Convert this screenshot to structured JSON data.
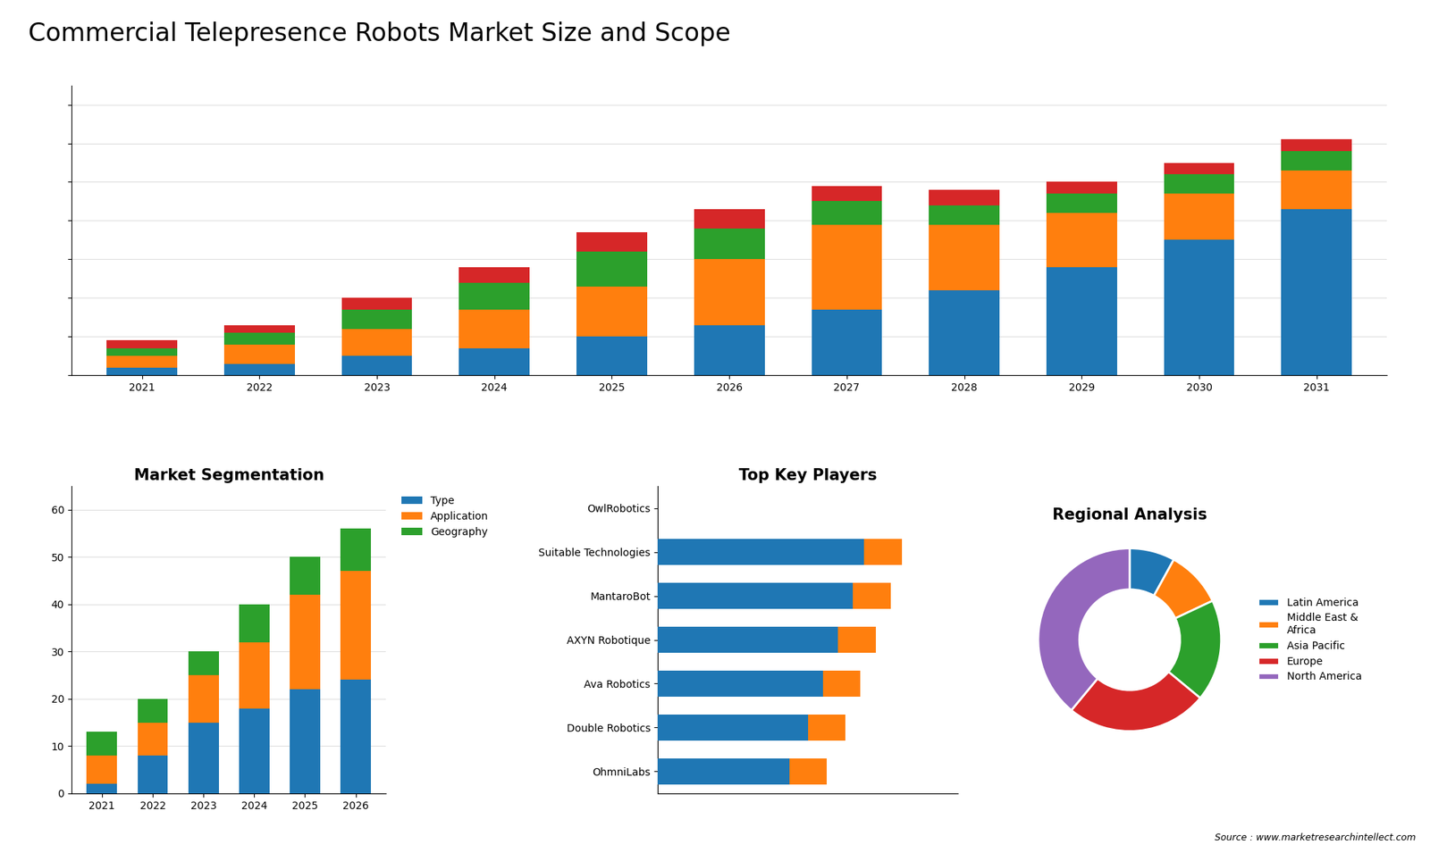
{
  "title": "Commercial Telepresence Robots Market Size and Scope",
  "annotation": "Source : www.marketresearchintellect.com",
  "chart_data": [
    {
      "type": "bar",
      "stacked": true,
      "categories": [
        "2021",
        "2022",
        "2023",
        "2024",
        "2025",
        "2026",
        "2027",
        "2028",
        "2029",
        "2030",
        "2031"
      ],
      "series": [
        {
          "values": [
            2,
            3,
            5,
            7,
            10,
            13,
            17,
            22,
            28,
            35,
            43
          ]
        },
        {
          "values": [
            3,
            5,
            7,
            10,
            13,
            17,
            22,
            17,
            14,
            12,
            10
          ]
        },
        {
          "values": [
            2,
            3,
            5,
            7,
            9,
            8,
            6,
            5,
            5,
            5,
            5
          ]
        },
        {
          "values": [
            2,
            2,
            3,
            4,
            5,
            5,
            4,
            4,
            3,
            3,
            3
          ]
        }
      ],
      "ylim": [
        0,
        75
      ],
      "yticks": [
        0,
        10,
        20,
        30,
        40,
        50,
        60,
        70
      ],
      "grid": true,
      "tick_labels": "x"
    },
    {
      "type": "bar",
      "stacked": true,
      "title": "Market Segmentation",
      "categories": [
        "2021",
        "2022",
        "2023",
        "2024",
        "2025",
        "2026"
      ],
      "series": [
        {
          "name": "Type",
          "values": [
            2,
            8,
            15,
            18,
            22,
            24
          ]
        },
        {
          "name": "Application",
          "values": [
            6,
            7,
            10,
            14,
            20,
            23
          ]
        },
        {
          "name": "Geography",
          "values": [
            5,
            5,
            5,
            8,
            8,
            9
          ]
        }
      ],
      "ylim": [
        0,
        65
      ],
      "yticks": [
        0,
        10,
        20,
        30,
        40,
        50,
        60
      ],
      "grid": true,
      "legend": "upper left"
    },
    {
      "type": "bar",
      "stacked": true,
      "orientation": "horizontal",
      "title": "Top Key Players",
      "categories": [
        "OwlRobotics",
        "Suitable Technologies",
        "MantaroBot",
        "AXYN Robotique",
        "Ava Robotics",
        "Double Robotics",
        "OhmniLabs"
      ],
      "series": [
        {
          "values": [
            0,
            55,
            52,
            48,
            44,
            40,
            35
          ]
        },
        {
          "values": [
            0,
            10,
            10,
            10,
            10,
            10,
            10
          ]
        }
      ],
      "xlim": [
        0,
        80
      ],
      "grid": false,
      "tick_labels": "y"
    },
    {
      "type": "pie",
      "title": "Regional Analysis",
      "categories": [
        "Latin America",
        "Middle East &\nAfrica",
        "Asia Pacific",
        "Europe",
        "North America"
      ],
      "values": [
        8,
        10,
        18,
        25,
        39
      ],
      "legend": "center left"
    }
  ]
}
